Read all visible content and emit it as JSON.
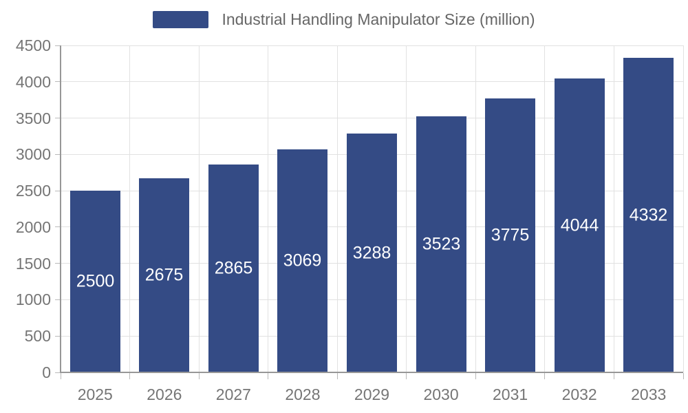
{
  "legend": {
    "label": "Industrial Handling Manipulator Size (million)"
  },
  "chart_data": {
    "type": "bar",
    "title": "Industrial Handling Manipulator Size (million)",
    "categories": [
      "2025",
      "2026",
      "2027",
      "2028",
      "2029",
      "2030",
      "2031",
      "2032",
      "2033"
    ],
    "values": [
      2500,
      2675,
      2865,
      3069,
      3288,
      3523,
      3775,
      4044,
      4332
    ],
    "xlabel": "",
    "ylabel": "",
    "ylim": [
      0,
      4500
    ],
    "ytick_interval": 500,
    "yticks": [
      0,
      500,
      1000,
      1500,
      2000,
      2500,
      3000,
      3500,
      4000,
      4500
    ],
    "grid": true,
    "legend_position": "top-center",
    "value_labels": "inside-center",
    "colors": {
      "bar": "#344B85",
      "bar_value_text": "#FFFFFF",
      "axis_text": "#757575",
      "legend_text": "#666666",
      "grid_line": "#E1E1E1",
      "axis_line": "#979797",
      "tick_line": "#B9B9B9"
    }
  }
}
